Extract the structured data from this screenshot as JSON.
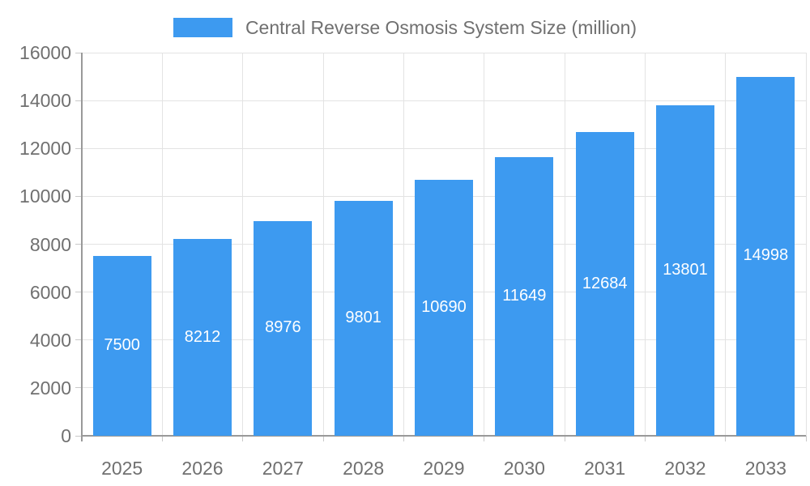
{
  "legend": {
    "label": "Central Reverse Osmosis System Size (million)"
  },
  "colors": {
    "bar": "#3D9AF0",
    "axis": "#999999",
    "grid": "#E3E3E3",
    "tick": "#C9C9C9",
    "axis_label_text": "#707070",
    "legend_text": "#707070",
    "bar_label_text": "#FFFFFF",
    "background": "#FFFFFF"
  },
  "chart_data": {
    "type": "bar",
    "title": "Central Reverse Osmosis System Size (million)",
    "series_name": "Central Reverse Osmosis System Size (million)",
    "categories": [
      "2025",
      "2026",
      "2027",
      "2028",
      "2029",
      "2030",
      "2031",
      "2032",
      "2033"
    ],
    "values": [
      7500,
      8212,
      8976,
      9801,
      10690,
      11649,
      12684,
      13801,
      14998
    ],
    "xlabel": "",
    "ylabel": "",
    "ylim": [
      0,
      16000
    ],
    "ytick_step": 2000,
    "yticks": [
      0,
      2000,
      4000,
      6000,
      8000,
      10000,
      12000,
      14000,
      16000
    ],
    "grid": true,
    "grid_horizontal": true,
    "grid_vertical": true,
    "legend_position": "top-center",
    "value_labels": "inside-center"
  }
}
